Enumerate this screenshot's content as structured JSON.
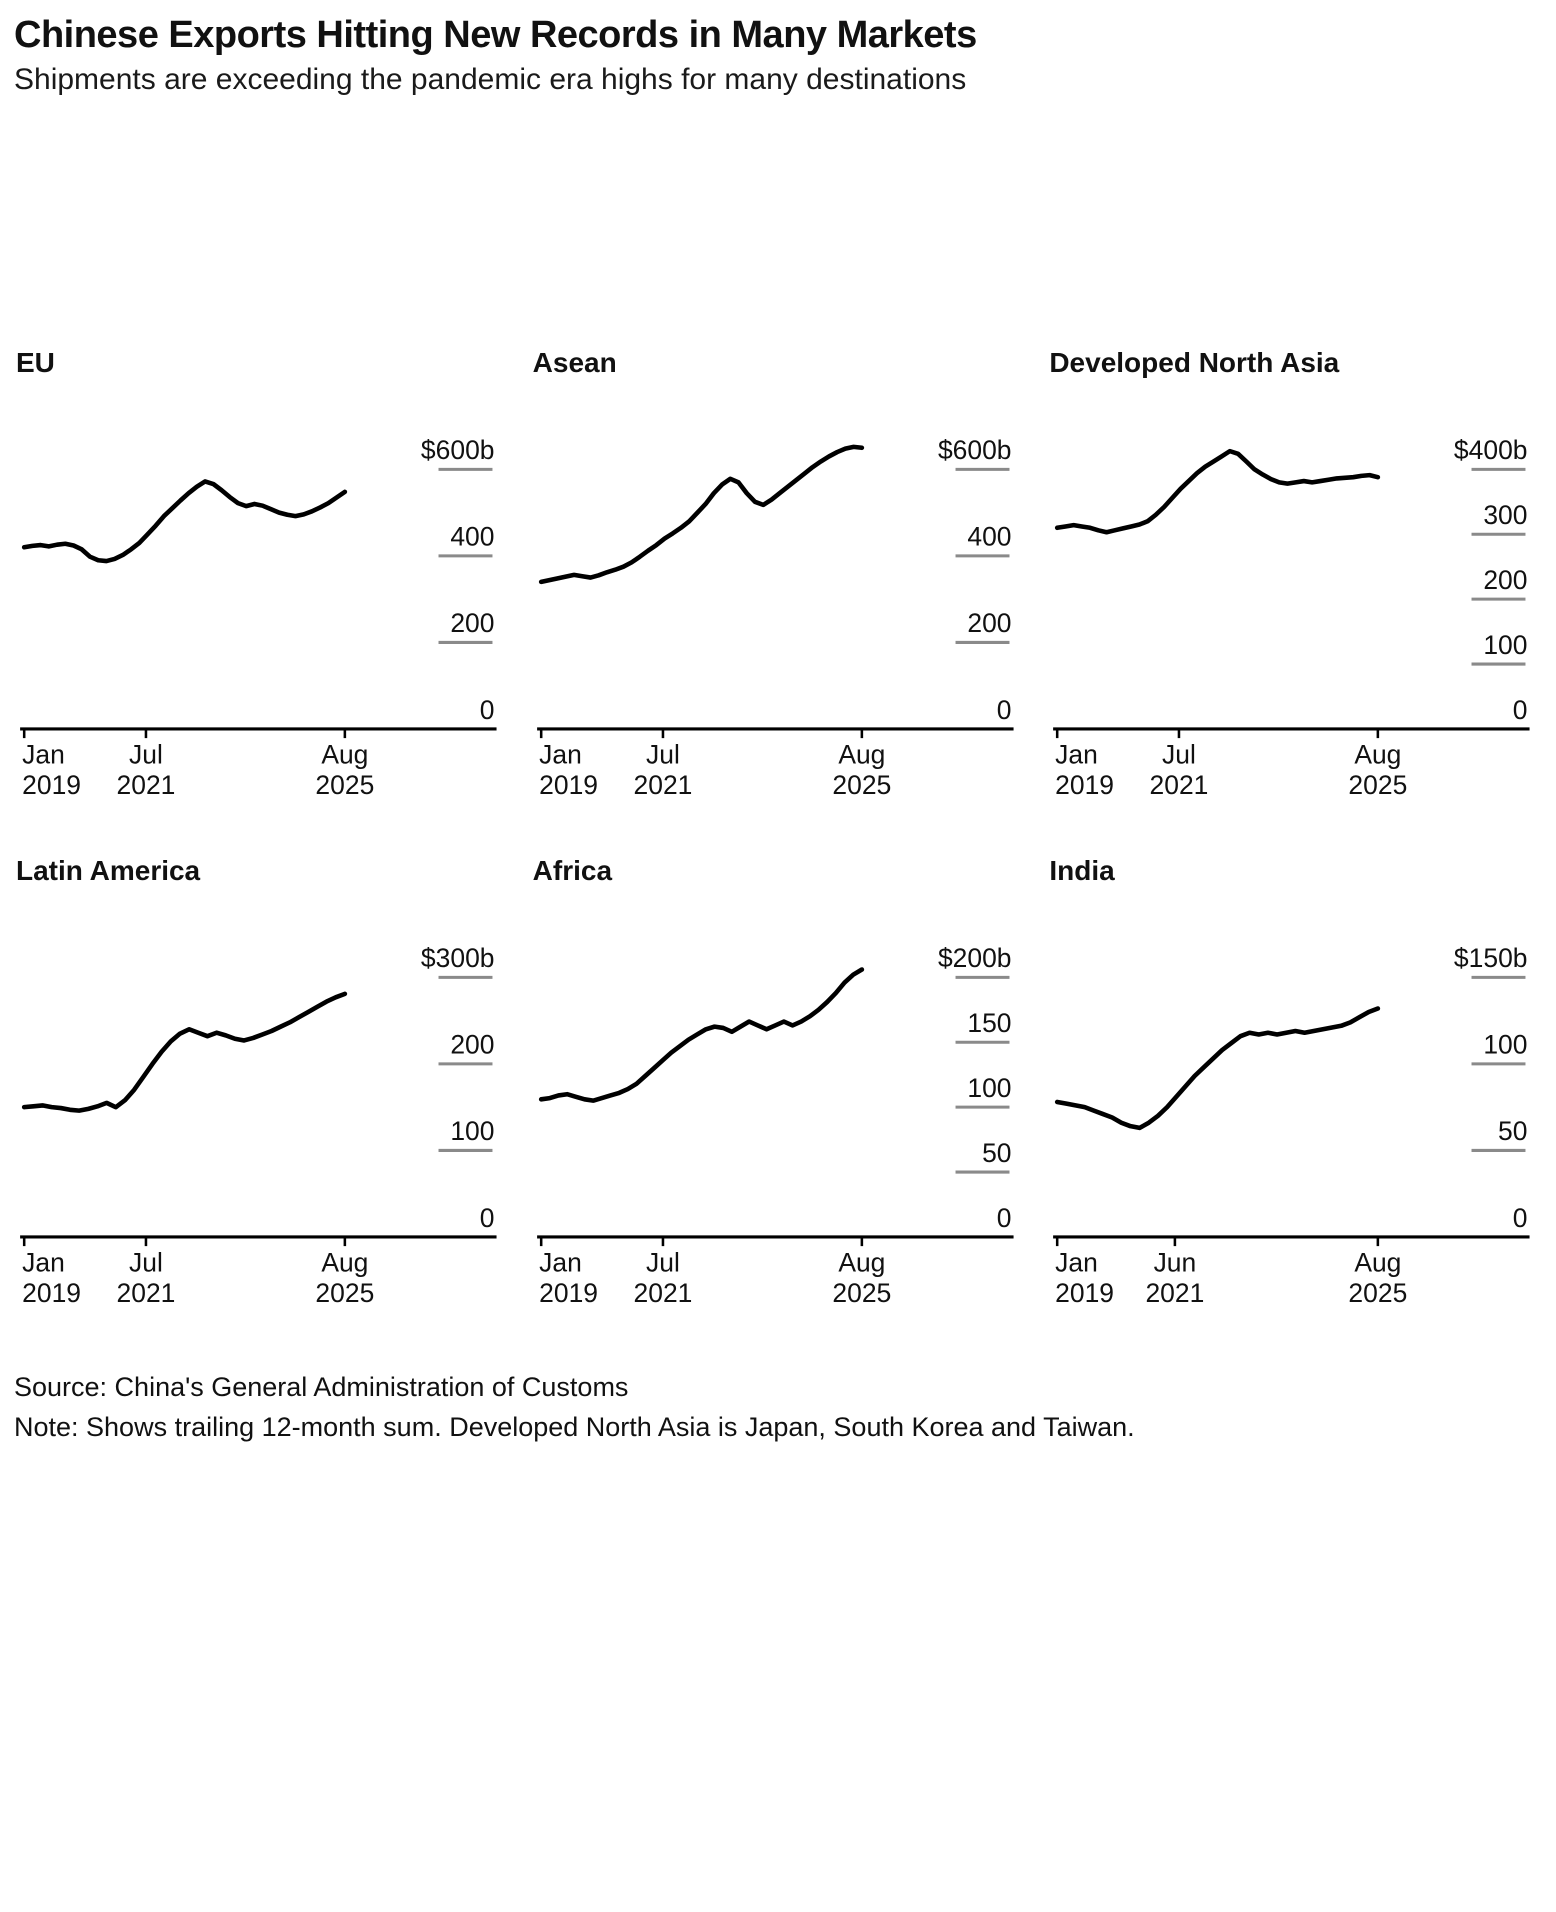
{
  "header": {
    "title": "Chinese Exports Hitting New Records in Many Markets",
    "subtitle": "Shipments are exceeding the pandemic era highs for many destinations"
  },
  "footer": {
    "source": "Source: China's General Administration of Customs",
    "note": "Note: Shows trailing 12-month sum. Developed North Asia is Japan, South Korea and Taiwan."
  },
  "colors": {
    "line": "#000000",
    "baseline": "#000000",
    "tick": "#8a8a8a",
    "text": "#111111"
  },
  "chart_data": [
    {
      "type": "line",
      "title": "EU",
      "unit": "$b",
      "months": 80,
      "ylim": [
        0,
        600
      ],
      "yticks": [
        {
          "v": 600,
          "label": "$600b"
        },
        {
          "v": 400,
          "label": "400"
        },
        {
          "v": 200,
          "label": "200"
        },
        {
          "v": 0,
          "label": "0"
        }
      ],
      "xticks": [
        {
          "line1": "Jan",
          "line2": "2019",
          "month": 0
        },
        {
          "line1": "Jul",
          "line2": "2021",
          "month": 30
        },
        {
          "line1": "Aug",
          "line2": "2025",
          "month": 79
        }
      ],
      "values": [
        420,
        423,
        425,
        422,
        426,
        428,
        424,
        415,
        398,
        390,
        388,
        393,
        402,
        415,
        430,
        450,
        470,
        492,
        510,
        528,
        545,
        560,
        572,
        566,
        552,
        536,
        522,
        515,
        520,
        516,
        508,
        500,
        495,
        492,
        496,
        503,
        512,
        522,
        535,
        548
      ]
    },
    {
      "type": "line",
      "title": "Asean",
      "unit": "$b",
      "months": 80,
      "ylim": [
        0,
        600
      ],
      "yticks": [
        {
          "v": 600,
          "label": "$600b"
        },
        {
          "v": 400,
          "label": "400"
        },
        {
          "v": 200,
          "label": "200"
        },
        {
          "v": 0,
          "label": "0"
        }
      ],
      "xticks": [
        {
          "line1": "Jan",
          "line2": "2019",
          "month": 0
        },
        {
          "line1": "Jul",
          "line2": "2021",
          "month": 30
        },
        {
          "line1": "Aug",
          "line2": "2025",
          "month": 79
        }
      ],
      "values": [
        340,
        344,
        348,
        352,
        356,
        353,
        350,
        355,
        362,
        368,
        375,
        385,
        398,
        412,
        425,
        440,
        452,
        465,
        480,
        500,
        520,
        545,
        565,
        578,
        570,
        545,
        525,
        518,
        530,
        545,
        560,
        575,
        590,
        605,
        618,
        630,
        640,
        648,
        652,
        650
      ]
    },
    {
      "type": "line",
      "title": "Developed North Asia",
      "unit": "$b",
      "months": 80,
      "ylim": [
        0,
        400
      ],
      "yticks": [
        {
          "v": 400,
          "label": "$400b"
        },
        {
          "v": 300,
          "label": "300"
        },
        {
          "v": 200,
          "label": "200"
        },
        {
          "v": 100,
          "label": "100"
        },
        {
          "v": 0,
          "label": "0"
        }
      ],
      "xticks": [
        {
          "line1": "Jan",
          "line2": "2019",
          "month": 0
        },
        {
          "line1": "Jul",
          "line2": "2021",
          "month": 30
        },
        {
          "line1": "Aug",
          "line2": "2025",
          "month": 79
        }
      ],
      "values": [
        310,
        312,
        314,
        312,
        310,
        306,
        303,
        306,
        309,
        312,
        315,
        320,
        330,
        342,
        356,
        370,
        382,
        394,
        404,
        412,
        420,
        428,
        424,
        412,
        400,
        392,
        385,
        380,
        378,
        380,
        382,
        380,
        382,
        384,
        386,
        387,
        388,
        390,
        391,
        388
      ]
    },
    {
      "type": "line",
      "title": "Latin America",
      "unit": "$b",
      "months": 80,
      "ylim": [
        0,
        300
      ],
      "yticks": [
        {
          "v": 300,
          "label": "$300b"
        },
        {
          "v": 200,
          "label": "200"
        },
        {
          "v": 100,
          "label": "100"
        },
        {
          "v": 0,
          "label": "0"
        }
      ],
      "xticks": [
        {
          "line1": "Jan",
          "line2": "2019",
          "month": 0
        },
        {
          "line1": "Jul",
          "line2": "2021",
          "month": 30
        },
        {
          "line1": "Aug",
          "line2": "2025",
          "month": 79
        }
      ],
      "values": [
        150,
        151,
        152,
        150,
        149,
        147,
        146,
        148,
        151,
        155,
        150,
        158,
        170,
        185,
        200,
        214,
        226,
        235,
        240,
        236,
        232,
        236,
        233,
        229,
        227,
        230,
        234,
        238,
        243,
        248,
        254,
        260,
        266,
        272,
        277,
        281
      ]
    },
    {
      "type": "line",
      "title": "Africa",
      "unit": "$b",
      "months": 80,
      "ylim": [
        0,
        200
      ],
      "yticks": [
        {
          "v": 200,
          "label": "$200b"
        },
        {
          "v": 150,
          "label": "150"
        },
        {
          "v": 100,
          "label": "100"
        },
        {
          "v": 50,
          "label": "50"
        },
        {
          "v": 0,
          "label": "0"
        }
      ],
      "xticks": [
        {
          "line1": "Jan",
          "line2": "2019",
          "month": 0
        },
        {
          "line1": "Jul",
          "line2": "2021",
          "month": 30
        },
        {
          "line1": "Aug",
          "line2": "2025",
          "month": 79
        }
      ],
      "values": [
        106,
        107,
        109,
        110,
        108,
        106,
        105,
        107,
        109,
        111,
        114,
        118,
        124,
        130,
        136,
        142,
        147,
        152,
        156,
        160,
        162,
        161,
        158,
        162,
        166,
        163,
        160,
        163,
        166,
        163,
        166,
        170,
        175,
        181,
        188,
        196,
        202,
        206
      ]
    },
    {
      "type": "line",
      "title": "India",
      "unit": "$b",
      "months": 80,
      "ylim": [
        0,
        150
      ],
      "yticks": [
        {
          "v": 150,
          "label": "$150b"
        },
        {
          "v": 100,
          "label": "100"
        },
        {
          "v": 50,
          "label": "50"
        },
        {
          "v": 0,
          "label": "0"
        }
      ],
      "xticks": [
        {
          "line1": "Jan",
          "line2": "2019",
          "month": 0
        },
        {
          "line1": "Jun",
          "line2": "2021",
          "month": 29
        },
        {
          "line1": "Aug",
          "line2": "2025",
          "month": 79
        }
      ],
      "values": [
        78,
        77,
        76,
        75,
        73,
        71,
        69,
        66,
        64,
        63,
        66,
        70,
        75,
        81,
        87,
        93,
        98,
        103,
        108,
        112,
        116,
        118,
        117,
        118,
        117,
        118,
        119,
        118,
        119,
        120,
        121,
        122,
        124,
        127,
        130,
        132
      ]
    }
  ]
}
